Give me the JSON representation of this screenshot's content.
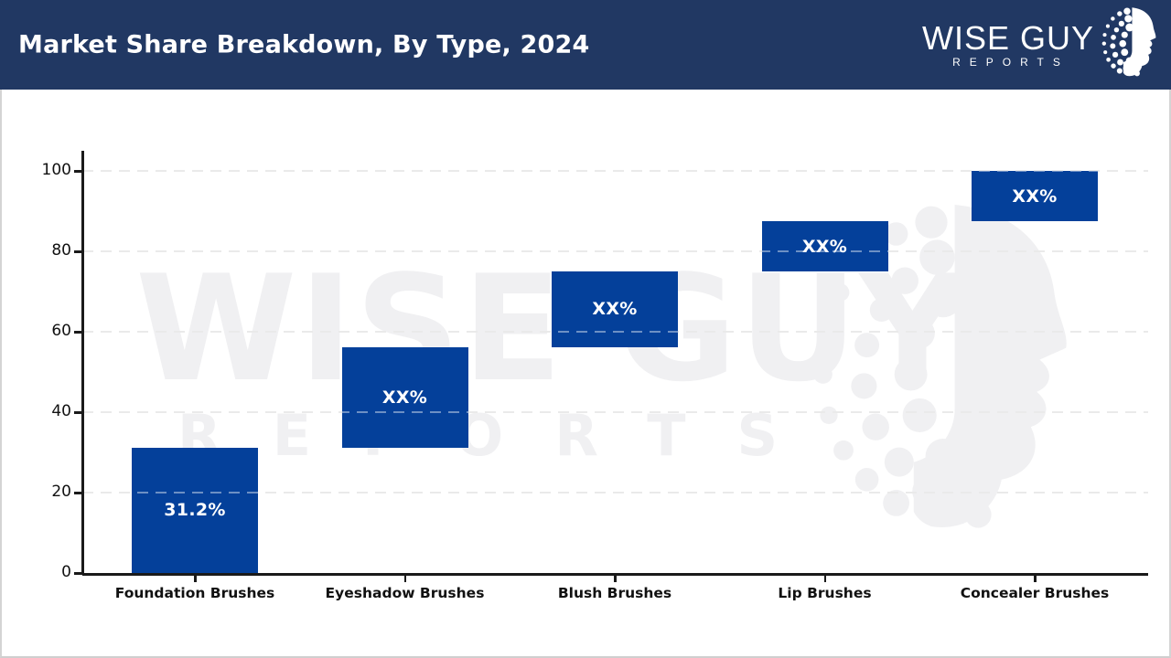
{
  "header": {
    "title": "Market Share Breakdown, By Type, 2024",
    "logo": {
      "line1": "WISE GUY",
      "line2": "REPORTS",
      "face_icon": "dotted-face-profile-icon"
    }
  },
  "watermark": {
    "line1": "WISE GUY",
    "line2": "REPORTS",
    "face_icon": "dotted-face-profile-icon"
  },
  "chart_data": {
    "type": "bar",
    "subtype": "waterfall",
    "title": "Market Share Breakdown, By Type, 2024",
    "categories": [
      "Foundation Brushes",
      "Eyeshadow Brushes",
      "Blush Brushes",
      "Lip Brushes",
      "Concealer Brushes"
    ],
    "segments": [
      {
        "category": "Foundation Brushes",
        "start": 0,
        "end": 31.2,
        "label": "31.2%"
      },
      {
        "category": "Eyeshadow Brushes",
        "start": 31.2,
        "end": 56.2,
        "label": "XX%"
      },
      {
        "category": "Blush Brushes",
        "start": 56.2,
        "end": 75.0,
        "label": "XX%"
      },
      {
        "category": "Lip Brushes",
        "start": 75.0,
        "end": 87.5,
        "label": "XX%"
      },
      {
        "category": "Concealer Brushes",
        "start": 87.5,
        "end": 100.0,
        "label": "XX%"
      }
    ],
    "yticks": [
      0,
      20,
      40,
      60,
      80,
      100
    ],
    "ylim": [
      0,
      105
    ],
    "grid": {
      "horizontal": true,
      "style": "dashed",
      "drawn_over_bars": true
    },
    "legend": "none",
    "bar_color": "#04409a",
    "bar_label_color": "#ffffff",
    "axis_color": "#1a1a1a"
  },
  "colors": {
    "header_bg": "#213863",
    "bar": "#04409a",
    "watermark": "#f0f0f2",
    "border": "#d4d4d4"
  }
}
